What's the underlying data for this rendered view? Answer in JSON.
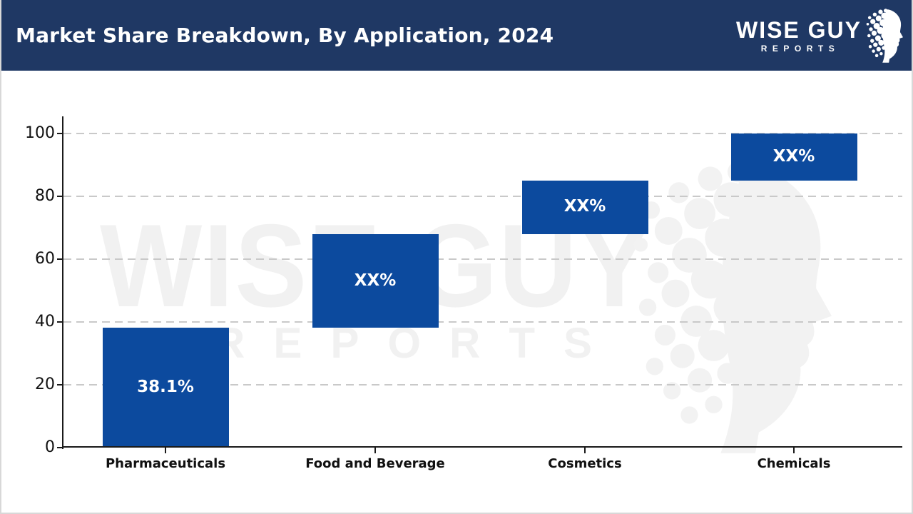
{
  "header": {
    "title": "Market Share Breakdown, By Application, 2024",
    "bg_color": "#1f3864",
    "brand": {
      "line1": "WISE GUY",
      "line2": "REPORTS"
    }
  },
  "watermark": {
    "line1": "WISE GUY",
    "line2": "REPORTS"
  },
  "chart_data": {
    "type": "bar",
    "variant": "floating-segment-waterfall",
    "title": "Market Share Breakdown, By Application, 2024",
    "categories": [
      "Pharmaceuticals",
      "Food and Beverage",
      "Cosmetics",
      "Chemicals"
    ],
    "segments": [
      {
        "category": "Pharmaceuticals",
        "start": 0,
        "end": 38.1,
        "label": "38.1%"
      },
      {
        "category": "Food and Beverage",
        "start": 38.1,
        "end": 68,
        "label": "XX%"
      },
      {
        "category": "Cosmetics",
        "start": 68,
        "end": 85,
        "label": "XX%"
      },
      {
        "category": "Chemicals",
        "start": 85,
        "end": 100,
        "label": "XX%"
      }
    ],
    "yticks": [
      0,
      20,
      40,
      60,
      80,
      100
    ],
    "ylim": [
      0,
      105
    ],
    "xlabel": "",
    "ylabel": "",
    "grid": "horizontal-dashed",
    "legend": "none",
    "bar_color": "#0c4a9e",
    "bar_label_color": "#ffffff"
  }
}
